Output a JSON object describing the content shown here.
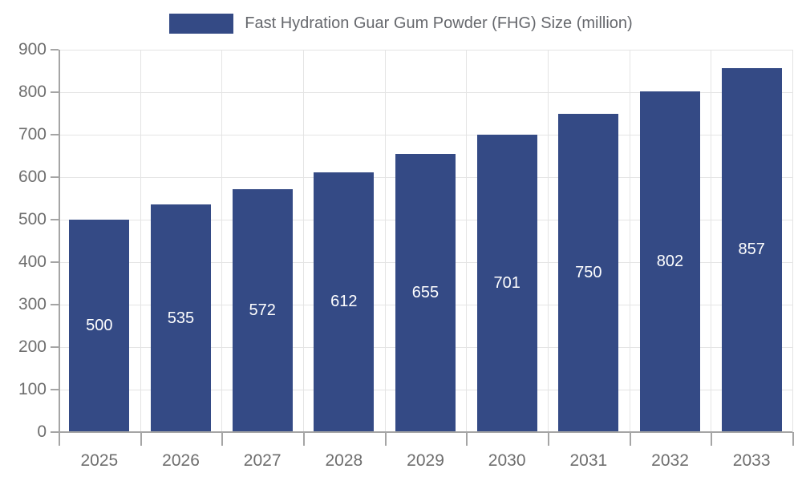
{
  "chart_data": {
    "type": "bar",
    "title": "Fast Hydration Guar Gum Powder (FHG) Size (million)",
    "categories": [
      "2025",
      "2026",
      "2027",
      "2028",
      "2029",
      "2030",
      "2031",
      "2032",
      "2033"
    ],
    "values": [
      500,
      535,
      572,
      612,
      655,
      701,
      750,
      802,
      857
    ],
    "xlabel": "",
    "ylabel": "",
    "ylim": [
      0,
      900
    ],
    "ytick_step": 100,
    "ytick_labels": [
      "0",
      "100",
      "200",
      "300",
      "400",
      "500",
      "600",
      "700",
      "800",
      "900"
    ],
    "grid": true,
    "legend_position": "top",
    "value_labels_shown_inside_bars": true,
    "colors": {
      "bar": "#344a85",
      "value_label": "#ffffff",
      "grid": "#e4e4e4",
      "axis": "#a5a5a5",
      "tick_label": "#6e6e6e",
      "legend_text": "#66686d"
    }
  }
}
